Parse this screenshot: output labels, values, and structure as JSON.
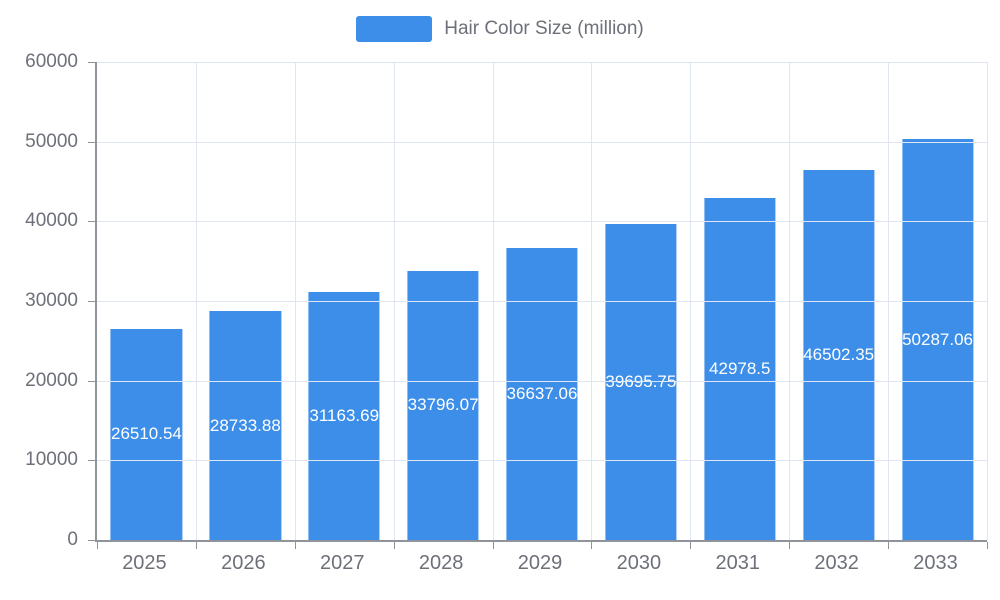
{
  "legend": {
    "label": "Hair Color Size (million)"
  },
  "chart_data": {
    "type": "bar",
    "title": "Hair Color Size (million)",
    "categories": [
      "2025",
      "2026",
      "2027",
      "2028",
      "2029",
      "2030",
      "2031",
      "2032",
      "2033"
    ],
    "values": [
      26510.54,
      28733.88,
      31163.69,
      33796.07,
      36637.06,
      39695.75,
      42978.5,
      46502.35,
      50287.06
    ],
    "bar_labels": [
      "26510.54",
      "28733.88",
      "31163.69",
      "33796.07",
      "36637.06",
      "39695.75",
      "42978.5",
      "46502.35",
      "50287.06"
    ],
    "xlabel": "",
    "ylabel": "",
    "ylim": [
      0,
      60000
    ],
    "y_ticks": [
      0,
      10000,
      20000,
      30000,
      40000,
      50000,
      60000
    ],
    "grid": true,
    "legend_position": "top-center",
    "colors": {
      "bar": "#3d8ee8",
      "label_text": "#ffffff",
      "axis_text": "#6e7079",
      "grid_line": "#e0e6f1",
      "axis_line": "#8f949a",
      "background": "#ffffff"
    }
  }
}
